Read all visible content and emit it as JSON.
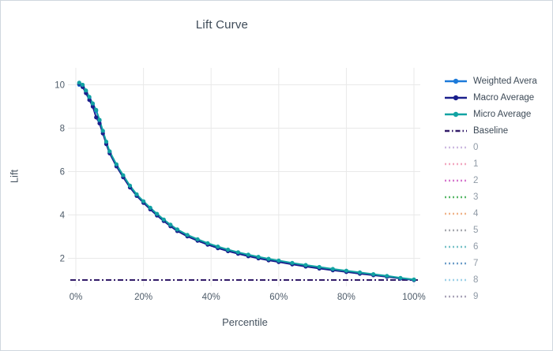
{
  "chart_data": {
    "type": "line",
    "title": "Lift Curve",
    "xlabel": "Percentile",
    "ylabel": "Lift",
    "x_tick_labels": [
      "0%",
      "20%",
      "40%",
      "60%",
      "80%",
      "100%"
    ],
    "x_tick_values": [
      0,
      20,
      40,
      60,
      80,
      100
    ],
    "y_tick_labels": [
      "2",
      "4",
      "6",
      "8",
      "10"
    ],
    "y_tick_values": [
      2,
      4,
      6,
      8,
      10
    ],
    "xlim": [
      0,
      100
    ],
    "ylim": [
      0.7,
      10.6
    ],
    "grid": true,
    "legend_position": "right",
    "x": [
      1,
      2,
      3,
      4,
      5,
      6,
      7,
      8,
      9,
      10,
      12,
      14,
      16,
      18,
      20,
      22,
      24,
      26,
      28,
      30,
      33,
      36,
      39,
      42,
      45,
      48,
      51,
      54,
      57,
      60,
      64,
      68,
      72,
      76,
      80,
      84,
      88,
      92,
      96,
      100
    ],
    "series": [
      {
        "name": "Weighted Avera",
        "color": "#1c7ad9",
        "style": "solid",
        "marker": true,
        "values": [
          10.0,
          9.95,
          9.7,
          9.4,
          9.1,
          8.8,
          8.35,
          7.85,
          7.35,
          6.9,
          6.3,
          5.8,
          5.32,
          4.92,
          4.6,
          4.3,
          4.02,
          3.76,
          3.52,
          3.3,
          3.05,
          2.85,
          2.67,
          2.51,
          2.37,
          2.25,
          2.14,
          2.04,
          1.95,
          1.87,
          1.76,
          1.66,
          1.57,
          1.48,
          1.4,
          1.32,
          1.24,
          1.16,
          1.08,
          1.0
        ]
      },
      {
        "name": "Macro Average",
        "color": "#1a1f8c",
        "style": "solid",
        "marker": true,
        "values": [
          10.05,
          9.9,
          9.62,
          9.3,
          9.0,
          8.5,
          8.22,
          7.76,
          7.27,
          6.84,
          6.24,
          5.74,
          5.27,
          4.88,
          4.56,
          4.26,
          3.98,
          3.72,
          3.48,
          3.26,
          3.01,
          2.81,
          2.63,
          2.47,
          2.33,
          2.21,
          2.1,
          2.0,
          1.91,
          1.83,
          1.72,
          1.62,
          1.53,
          1.45,
          1.37,
          1.29,
          1.22,
          1.15,
          1.07,
          1.0
        ]
      },
      {
        "name": "Micro Average",
        "color": "#12a3a3",
        "style": "solid",
        "marker": true,
        "values": [
          10.1,
          10.0,
          9.74,
          9.44,
          9.14,
          8.84,
          8.38,
          7.88,
          7.38,
          6.93,
          6.33,
          5.83,
          5.35,
          4.95,
          4.63,
          4.33,
          4.05,
          3.79,
          3.55,
          3.33,
          3.08,
          2.88,
          2.7,
          2.54,
          2.4,
          2.28,
          2.17,
          2.07,
          1.98,
          1.9,
          1.79,
          1.69,
          1.6,
          1.51,
          1.43,
          1.35,
          1.27,
          1.19,
          1.1,
          1.02
        ]
      }
    ],
    "baseline": {
      "name": "Baseline",
      "color": "#321b68",
      "style": "dashdot",
      "y": 1
    },
    "muted_series": [
      {
        "name": "0",
        "color": "#cdb9e0"
      },
      {
        "name": "1",
        "color": "#f2a8c0"
      },
      {
        "name": "2",
        "color": "#d678ce"
      },
      {
        "name": "3",
        "color": "#58b868"
      },
      {
        "name": "4",
        "color": "#f0b48a"
      },
      {
        "name": "5",
        "color": "#a8aab0"
      },
      {
        "name": "6",
        "color": "#79c2c8"
      },
      {
        "name": "7",
        "color": "#6d9ec9"
      },
      {
        "name": "8",
        "color": "#9fd1e8"
      },
      {
        "name": "9",
        "color": "#a9a3b8"
      }
    ]
  }
}
